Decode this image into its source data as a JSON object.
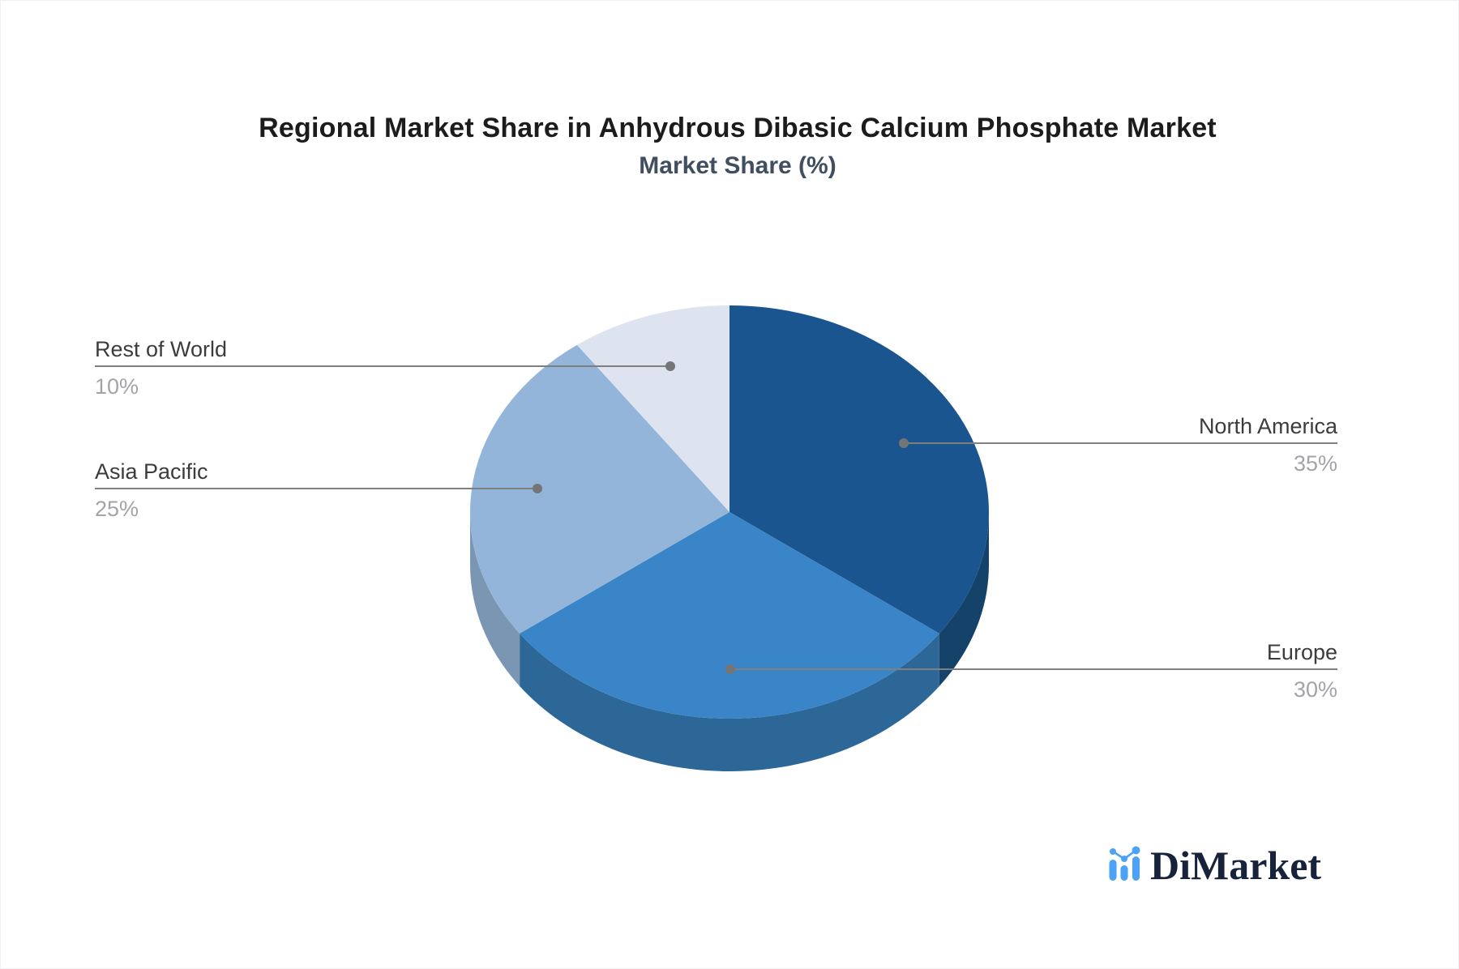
{
  "header": {
    "title": "Regional Market Share in Anhydrous Dibasic Calcium Phosphate Market",
    "subtitle": "Market Share (%)"
  },
  "chart_data": {
    "type": "pie",
    "title": "Regional Market Share in Anhydrous Dibasic Calcium Phosphate Market",
    "subtitle": "Market Share (%)",
    "unit": "%",
    "total": 100,
    "style": "3d-extruded",
    "start_angle": "top",
    "direction": "clockwise",
    "legend_position": "none",
    "labels": "callout-leader-lines",
    "slices": [
      {
        "label": "North America",
        "value": 35,
        "display": "35%",
        "color": "#1b5590",
        "side_color": "#154269",
        "callout_side": "right"
      },
      {
        "label": "Europe",
        "value": 30,
        "display": "30%",
        "color": "#3a85c8",
        "side_color": "#2d6797",
        "callout_side": "right"
      },
      {
        "label": "Asia Pacific",
        "value": 25,
        "display": "25%",
        "color": "#93b5d9",
        "side_color": "#7b96b3",
        "callout_side": "left"
      },
      {
        "label": "Rest of World",
        "value": 10,
        "display": "10%",
        "color": "#dde4ef",
        "side_color": "#b8c2d1",
        "callout_side": "left"
      }
    ],
    "colors": {
      "leader_line": "#7f7f7f",
      "leader_dot": "#757575",
      "label_text": "#3c3c3c",
      "label_percent": "#a4a4a8",
      "title": "#1c1c1c",
      "subtitle": "#414e5f",
      "background": "#ffffff"
    }
  },
  "branding": {
    "logo_text": "DiMarket",
    "logo_icon": "bar-line-chart-icon",
    "logo_text_color": "#16233b",
    "logo_icon_color": "#4ba2f7"
  }
}
